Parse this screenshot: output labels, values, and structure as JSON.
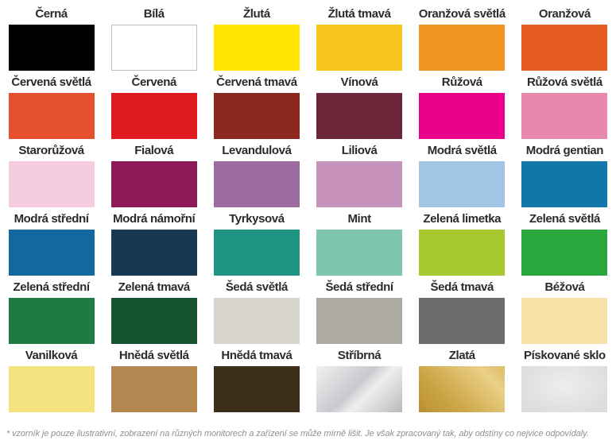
{
  "swatches": [
    {
      "label": "Černá",
      "color": "#000000"
    },
    {
      "label": "Bílá",
      "color": "#ffffff",
      "border": "#bfbfbf"
    },
    {
      "label": "Žlutá",
      "color": "#ffe500"
    },
    {
      "label": "Žlutá tmavá",
      "color": "#f8c61e"
    },
    {
      "label": "Oranžová světlá",
      "color": "#f0941f"
    },
    {
      "label": "Oranžová",
      "color": "#e45c20"
    },
    {
      "label": "Červená světlá",
      "color": "#e5512f"
    },
    {
      "label": "Červená",
      "color": "#e01b20"
    },
    {
      "label": "Červená tmavá",
      "color": "#8c281e"
    },
    {
      "label": "Vínová",
      "color": "#6d2639"
    },
    {
      "label": "Růžová",
      "color": "#eb008b"
    },
    {
      "label": "Růžová světlá",
      "color": "#e888ac"
    },
    {
      "label": "Starorůžová",
      "color": "#f4cbdf"
    },
    {
      "label": "Fialová",
      "color": "#8e1a57"
    },
    {
      "label": "Levandulová",
      "color": "#9c6ca0"
    },
    {
      "label": "Liliová",
      "color": "#c792ba"
    },
    {
      "label": "Modrá světlá",
      "color": "#a1c6e5"
    },
    {
      "label": "Modrá gentian",
      "color": "#0f77a9"
    },
    {
      "label": "Modrá střední",
      "color": "#13699f"
    },
    {
      "label": "Modrá námořní",
      "color": "#173853"
    },
    {
      "label": "Tyrkysová",
      "color": "#1f9483"
    },
    {
      "label": "Mint",
      "color": "#7fc6b0"
    },
    {
      "label": "Zelená limetka",
      "color": "#a7c92f"
    },
    {
      "label": "Zelená světlá",
      "color": "#2aa73c"
    },
    {
      "label": "Zelená střední",
      "color": "#1f7b43"
    },
    {
      "label": "Zelená tmavá",
      "color": "#15542f"
    },
    {
      "label": "Šedá světlá",
      "color": "#d7d4cb"
    },
    {
      "label": "Šedá střední",
      "color": "#adaaa3"
    },
    {
      "label": "Šedá tmavá",
      "color": "#6c6b6a"
    },
    {
      "label": "Béžová",
      "color": "#f6e1a6"
    },
    {
      "label": "Vanilková",
      "color": "#f3e27d"
    },
    {
      "label": "Hnědá světlá",
      "color": "#b48650"
    },
    {
      "label": "Hnědá tmavá",
      "color": "#3d2e1b"
    },
    {
      "label": "Stříbrná",
      "gradient": [
        "#eef0f1",
        "#c8cacd 45%",
        "#eeeff0 60%",
        "#b7b9bc"
      ],
      "gradient_angle": "135deg"
    },
    {
      "label": "Zlatá",
      "gradient": [
        "#b9902f",
        "#cda748 35%",
        "#ead087 80%",
        "#dcbc67"
      ],
      "gradient_angle": "45deg"
    },
    {
      "label": "Pískované sklo",
      "radial": [
        "#edeeef",
        "#dadcdd 85%"
      ]
    }
  ],
  "footer": {
    "note": "* vzorník je pouze ilustrativní, zobrazení na různých monitorech a zařízení se může mírně lišit. Je však zpracovaný tak, aby odstíny co nejvice odpovídaly."
  }
}
